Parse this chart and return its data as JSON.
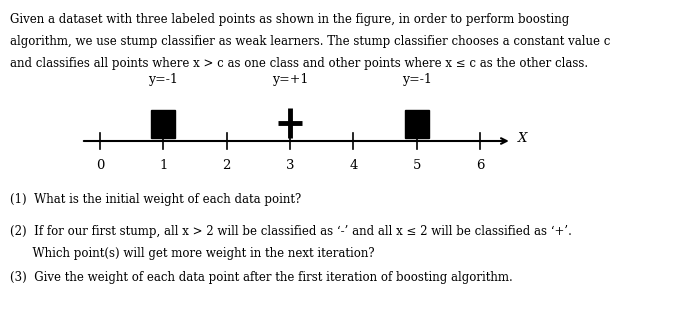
{
  "title_lines": [
    "Given a dataset with three labeled points as shown in the figure, in order to perform boosting",
    "algorithm, we use stump classifier as weak learners. The stump classifier chooses a constant value c",
    "and classifies all points where x > c as one class and other points where x ≤ c as the other class."
  ],
  "number_line": {
    "tick_positions": [
      0,
      1,
      2,
      3,
      4,
      5,
      6
    ],
    "tick_labels": [
      "0",
      "1",
      "2",
      "3",
      "4",
      "5",
      "6"
    ],
    "points": [
      {
        "x": 1,
        "label": "y=-1",
        "marker": "square"
      },
      {
        "x": 3,
        "label": "y=+1",
        "marker": "plus"
      },
      {
        "x": 5,
        "label": "y=-1",
        "marker": "square"
      }
    ]
  },
  "q1": "(1)  What is the initial weight of each data point?",
  "q2a": "(2)  If for our first stump, all x > 2 will be classified as ‘-’ and all x ≤ 2 will be classified as ‘+’.",
  "q2b": "      Which point(s) will get more weight in the next iteration?",
  "q3": "(3)  Give the weight of each data point after the first iteration of boosting algorithm.",
  "font_size": 8.5,
  "bg_color": "#ffffff",
  "text_color": "#000000",
  "line_color": "#000000"
}
